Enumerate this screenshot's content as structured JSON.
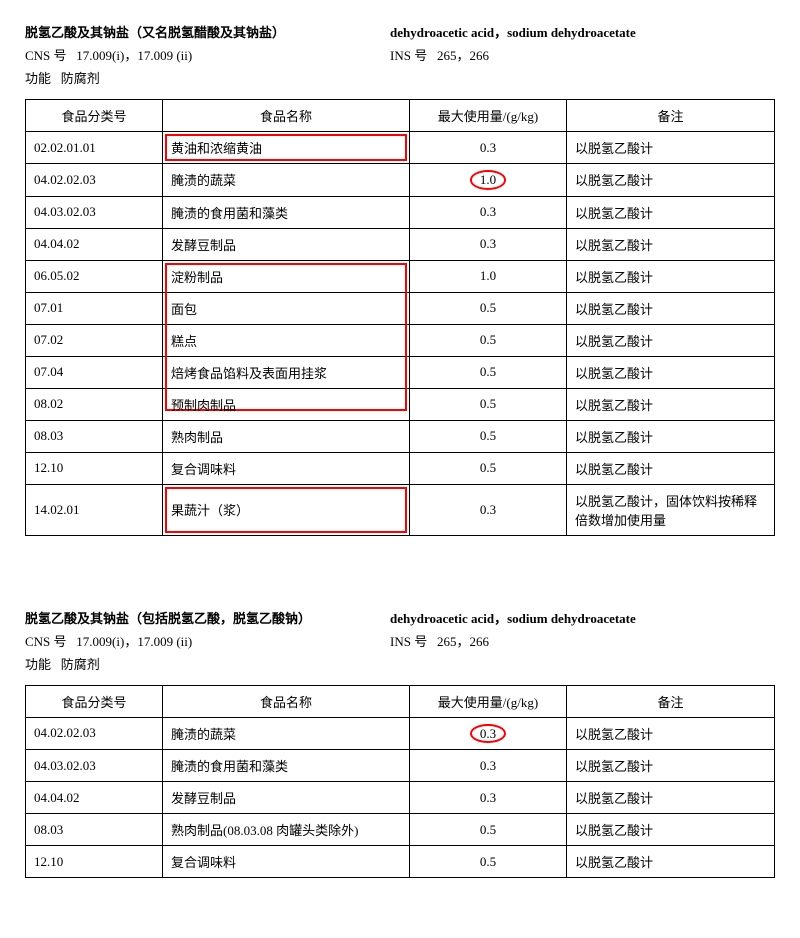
{
  "section1": {
    "title_cn": "脱氢乙酸及其钠盐（又名脱氢醋酸及其钠盐）",
    "title_en": "dehydroacetic acid，sodium dehydroacetate",
    "cns_label": "CNS 号",
    "cns_value": "17.009(i)，17.009 (ii)",
    "ins_label": "INS 号",
    "ins_value": "265，266",
    "func_label": "功能",
    "func_value": "防腐剂",
    "headers": {
      "code": "食品分类号",
      "name": "食品名称",
      "max": "最大使用量/(g/kg)",
      "note": "备注"
    },
    "rows": [
      {
        "code": "02.02.01.01",
        "name": "黄油和浓缩黄油",
        "max": "0.3",
        "note": "以脱氢乙酸计",
        "box_name": true
      },
      {
        "code": "04.02.02.03",
        "name": "腌渍的蔬菜",
        "max": "1.0",
        "note": "以脱氢乙酸计",
        "oval_max": true
      },
      {
        "code": "04.03.02.03",
        "name": "腌渍的食用菌和藻类",
        "max": "0.3",
        "note": "以脱氢乙酸计"
      },
      {
        "code": "04.04.02",
        "name": "发酵豆制品",
        "max": "0.3",
        "note": "以脱氢乙酸计"
      },
      {
        "code": "06.05.02",
        "name": "淀粉制品",
        "max": "1.0",
        "note": "以脱氢乙酸计",
        "box_group": "g1"
      },
      {
        "code": "07.01",
        "name": "面包",
        "max": "0.5",
        "note": "以脱氢乙酸计",
        "box_group": "g1"
      },
      {
        "code": "07.02",
        "name": "糕点",
        "max": "0.5",
        "note": "以脱氢乙酸计",
        "box_group": "g1"
      },
      {
        "code": "07.04",
        "name": "焙烤食品馅料及表面用挂浆",
        "max": "0.5",
        "note": "以脱氢乙酸计",
        "box_group": "g1"
      },
      {
        "code": "08.02",
        "name": "预制肉制品",
        "max": "0.5",
        "note": "以脱氢乙酸计",
        "box_group": "g1"
      },
      {
        "code": "08.03",
        "name": "熟肉制品",
        "max": "0.5",
        "note": "以脱氢乙酸计"
      },
      {
        "code": "12.10",
        "name": "复合调味料",
        "max": "0.5",
        "note": "以脱氢乙酸计"
      },
      {
        "code": "14.02.01",
        "name": "果蔬汁（浆）",
        "max": "0.3",
        "note": "以脱氢乙酸计，固体饮料按稀释倍数增加使用量",
        "box_name": true
      }
    ]
  },
  "section2": {
    "title_cn": "脱氢乙酸及其钠盐（包括脱氢乙酸，脱氢乙酸钠）",
    "title_en": "dehydroacetic acid，sodium dehydroacetate",
    "cns_label": "CNS 号",
    "cns_value": "17.009(i)，17.009 (ii)",
    "ins_label": "INS 号",
    "ins_value": "265，266",
    "func_label": "功能",
    "func_value": "防腐剂",
    "headers": {
      "code": "食品分类号",
      "name": "食品名称",
      "max": "最大使用量/(g/kg)",
      "note": "备注"
    },
    "rows": [
      {
        "code": "04.02.02.03",
        "name": "腌渍的蔬菜",
        "max": "0.3",
        "note": "以脱氢乙酸计",
        "oval_max": true
      },
      {
        "code": "04.03.02.03",
        "name": "腌渍的食用菌和藻类",
        "max": "0.3",
        "note": "以脱氢乙酸计"
      },
      {
        "code": "04.04.02",
        "name": "发酵豆制品",
        "max": "0.3",
        "note": "以脱氢乙酸计"
      },
      {
        "code": "08.03",
        "name": "熟肉制品(08.03.08 肉罐头类除外)",
        "max": "0.5",
        "note": "以脱氢乙酸计"
      },
      {
        "code": "12.10",
        "name": "复合调味料",
        "max": "0.5",
        "note": "以脱氢乙酸计"
      }
    ]
  },
  "highlight_color": "#ff0000"
}
